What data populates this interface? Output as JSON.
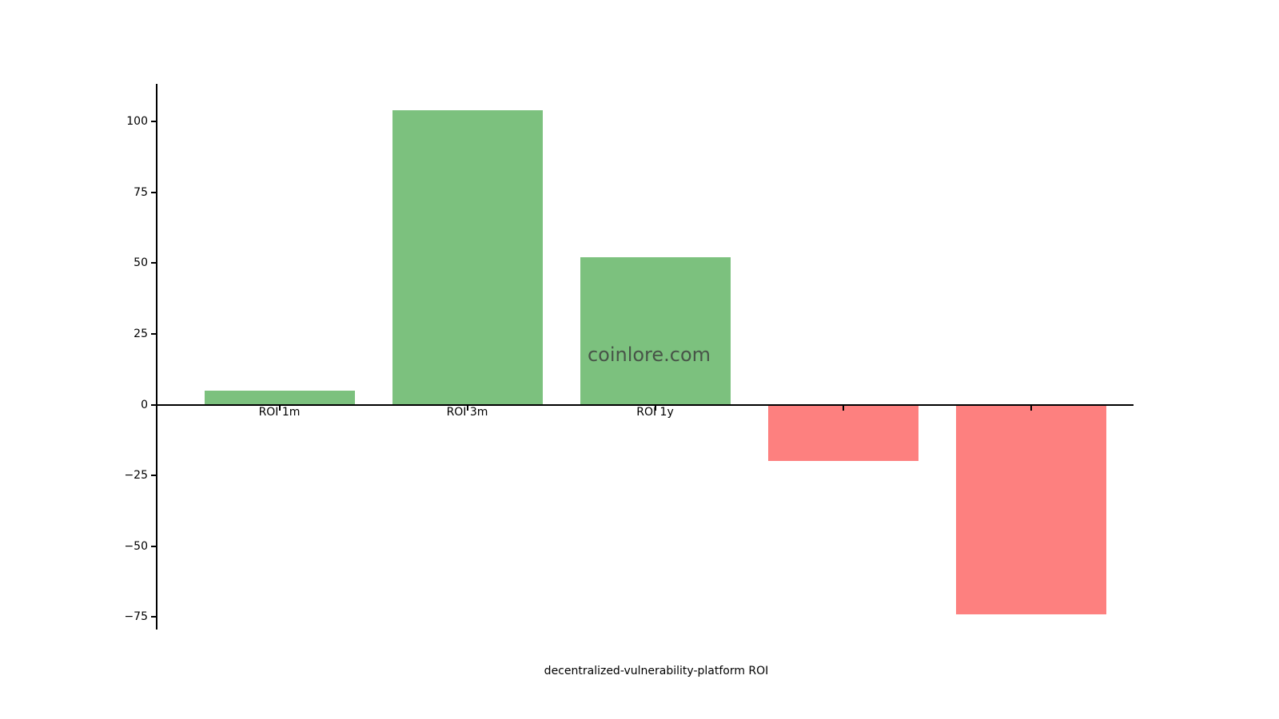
{
  "chart_data": {
    "type": "bar",
    "title": "decentralized-vulnerability-platform ROI",
    "watermark": "coinlore.com",
    "categories": [
      "ROI 1m",
      "ROI 3m",
      "ROI 1y",
      "",
      ""
    ],
    "values": [
      5,
      104,
      52,
      -20,
      -74
    ],
    "yticks": [
      100,
      75,
      50,
      25,
      0,
      -25,
      -50,
      -75
    ],
    "ylim": [
      -79,
      113
    ],
    "xlabel": "",
    "ylabel": "",
    "grid": false,
    "legend": null,
    "colors": {
      "positive_bar": "#7cc17e",
      "negative_bar": "#fd807f",
      "axis": "#000000",
      "tick_label": "#000000",
      "title": "#000000",
      "watermark": "#3d3d3d"
    }
  }
}
